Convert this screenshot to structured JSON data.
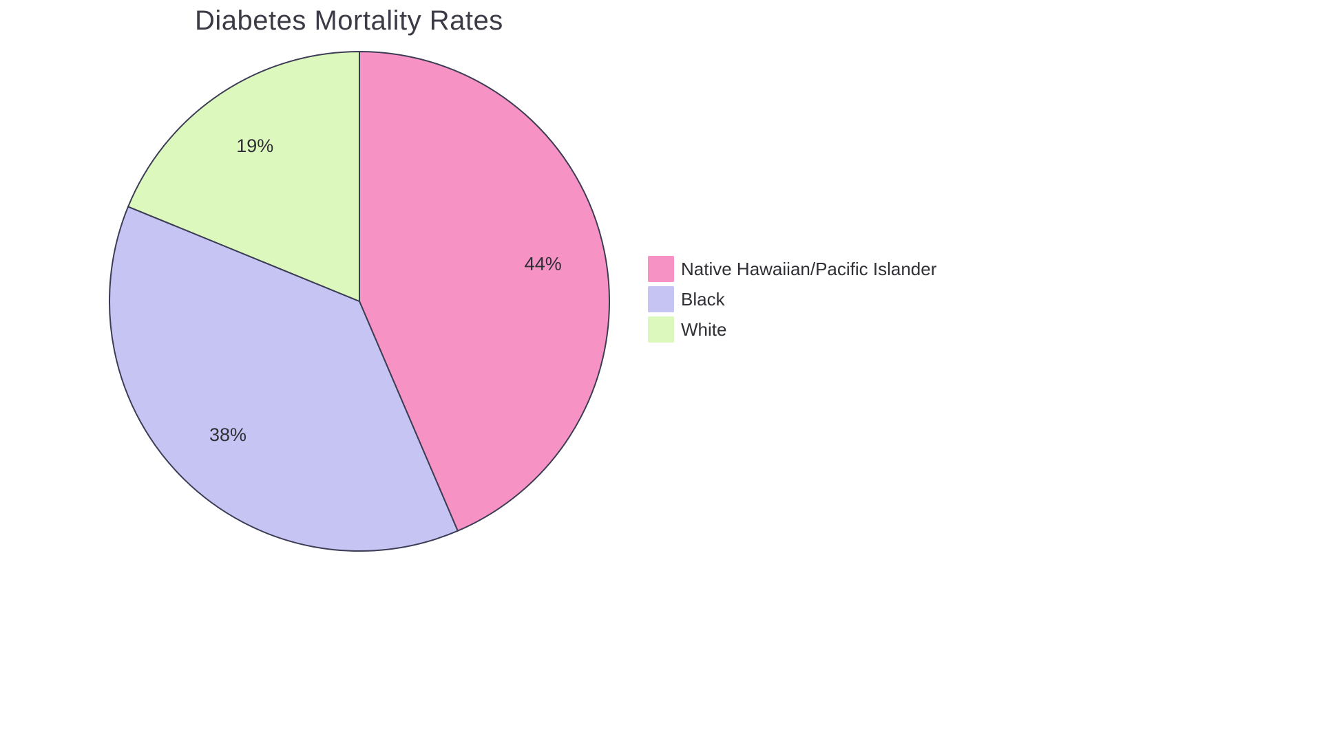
{
  "chart_data": {
    "type": "pie",
    "title": "Diabetes Mortality Rates",
    "labels": [
      "Native Hawaiian/Pacific Islander",
      "Black",
      "White"
    ],
    "values": [
      44,
      38,
      19
    ],
    "value_labels": [
      "44%",
      "38%",
      "19%"
    ],
    "colors": [
      "#F792C5",
      "#C5C4F2",
      "#DCF8BD"
    ],
    "stroke_color": "#3c3c55",
    "legend_position": "right",
    "start_angle": "top",
    "direction": "clockwise"
  }
}
